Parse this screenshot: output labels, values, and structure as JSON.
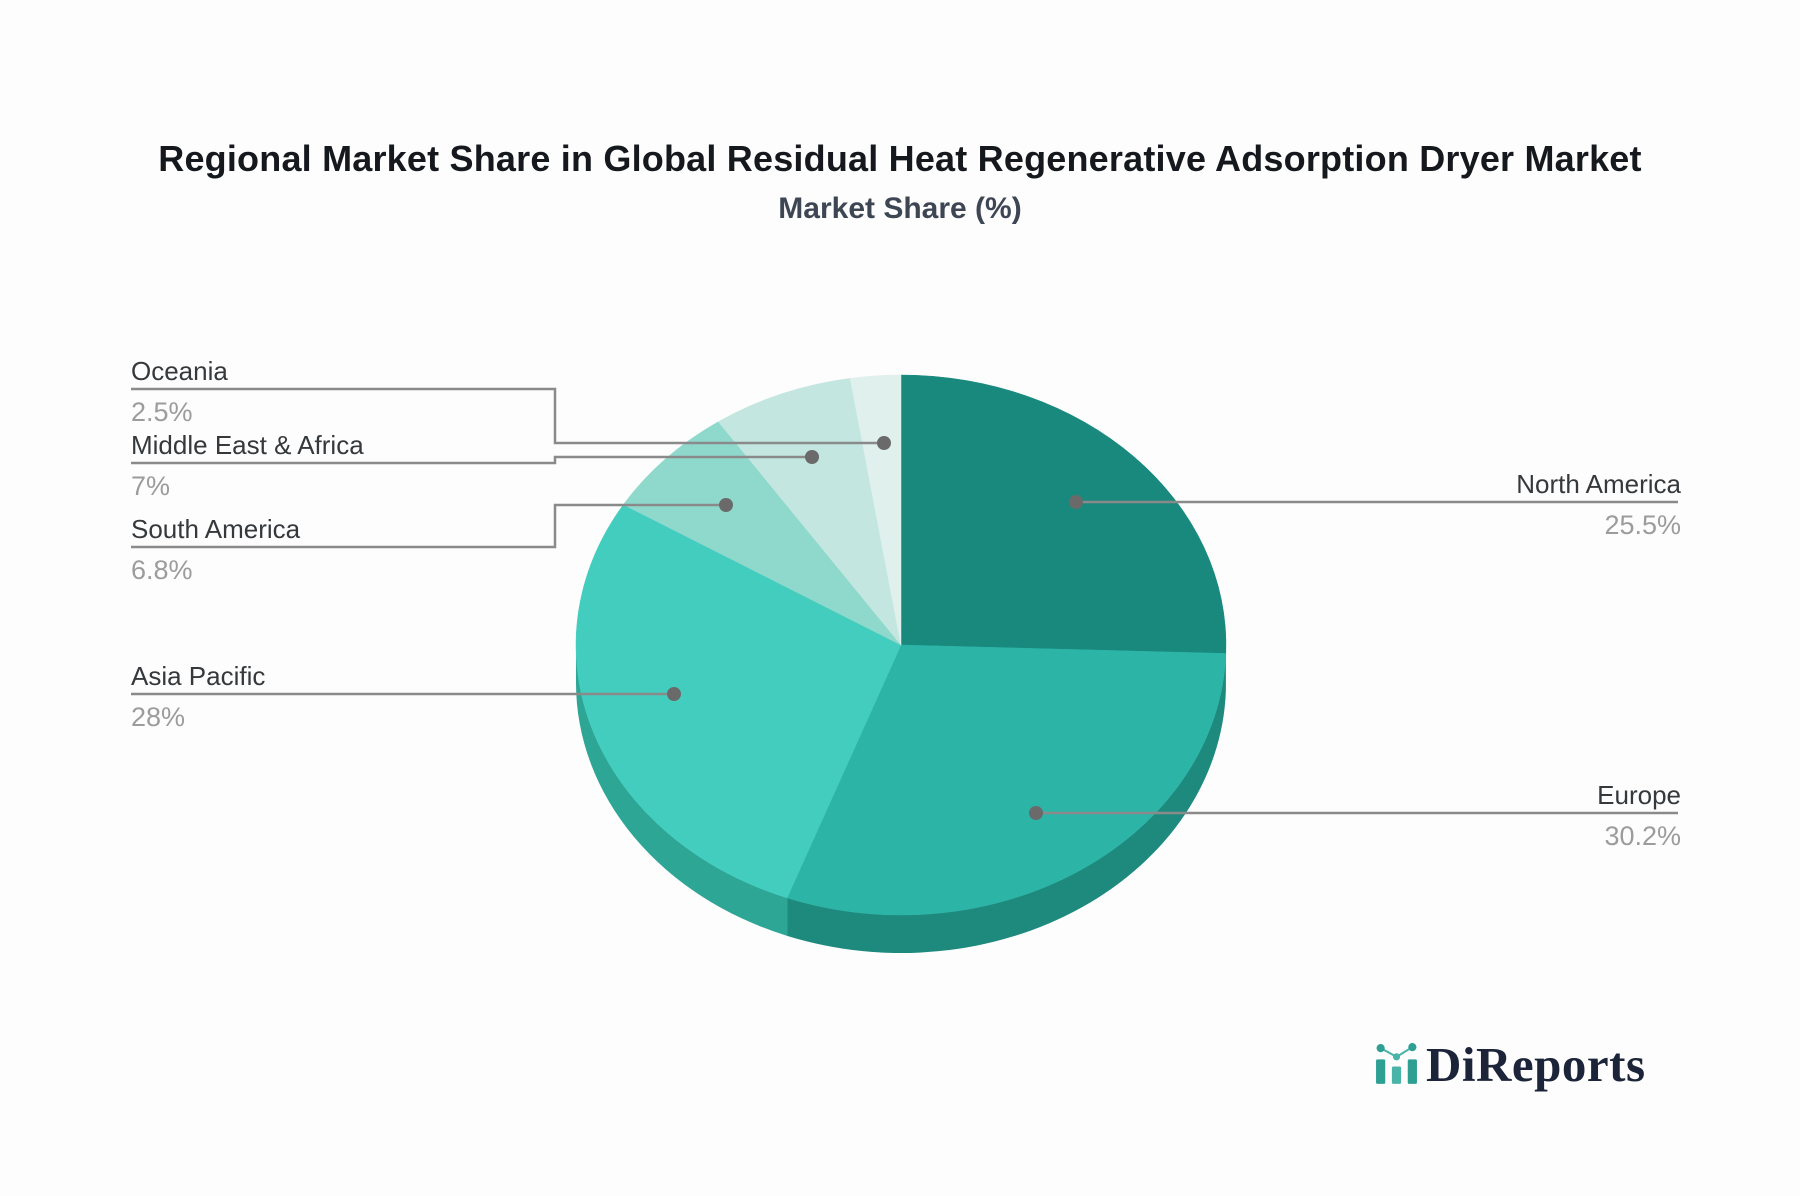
{
  "header": {
    "title": "Regional Market Share in Global Residual Heat Regenerative Adsorption Dryer Market",
    "subtitle": "Market Share (%)"
  },
  "chart_data": {
    "type": "pie",
    "title": "Regional Market Share in Global Residual Heat Regenerative Adsorption Dryer Market",
    "subtitle": "Market Share (%)",
    "unit": "%",
    "style": "3d-pie",
    "start_angle_deg": 0,
    "direction": "clockwise",
    "legend_position": "none",
    "slices": [
      {
        "label": "North America",
        "value": 25.5,
        "display": "25.5%",
        "color": "#19897e",
        "side_color": "#126b62"
      },
      {
        "label": "Europe",
        "value": 30.2,
        "display": "30.2%",
        "color": "#2cb4a6",
        "side_color": "#1e8a7e"
      },
      {
        "label": "Asia Pacific",
        "value": 28,
        "display": "28%",
        "color": "#43cdbe",
        "side_color": "#2ea695"
      },
      {
        "label": "South America",
        "value": 6.8,
        "display": "6.8%",
        "color": "#8fd9cc",
        "side_color": "#68b5a9"
      },
      {
        "label": "Middle East & Africa",
        "value": 7,
        "display": "7%",
        "color": "#c3e7e0",
        "side_color": "#93c4bc"
      },
      {
        "label": "Oceania",
        "value": 2.5,
        "display": "2.5%",
        "color": "#e0f0ec",
        "side_color": "#aed0c9"
      }
    ],
    "label_style": {
      "name_color": "#35393c",
      "value_color": "#9c9c9c",
      "line_color": "#8a8a8a",
      "dot_color": "#6a6a6a"
    }
  },
  "logo": {
    "text": "DiReports",
    "icon": "bar-chart-logo-icon",
    "text_color": "#1b2438",
    "accent_color": "#2d9f93",
    "accent_light_color": "#4ab4a9"
  }
}
